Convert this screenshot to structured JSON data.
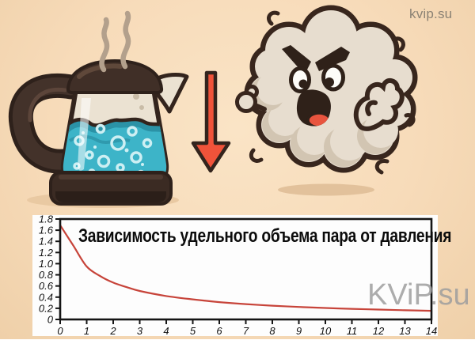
{
  "site": {
    "header_watermark": "kvip.su",
    "chart_watermark": "KViP.su"
  },
  "illustration": {
    "kettle": "glass kettle with boiling blue water and steam",
    "cloud": "angry steam cloud shouting",
    "arrow": "red arrow pointing down",
    "colors": {
      "background": "#f7dbb9",
      "outline": "#33241d",
      "kettle_body": "#3f2f27",
      "glass": "#ebe2d2",
      "water": "#3db4c8",
      "water_dark": "#2b92a6",
      "bubble": "#cdeff3",
      "steam": "#b3a08c",
      "cloud_fill": "#e7ddcf",
      "cloud_shade": "#d2c5b2",
      "arrow_red": "#f0533a",
      "tongue_red": "#e8543e",
      "shadow_tan": "#e2c19b"
    }
  },
  "chart_data": {
    "type": "line",
    "title": "Зависимость удельного объема пара от давления",
    "series_name": "удельный объем пара",
    "x": [
      0,
      0.5,
      1,
      1.5,
      2,
      2.5,
      3,
      4,
      5,
      6,
      7,
      8,
      9,
      10,
      11,
      12,
      13,
      14
    ],
    "values": [
      1.69,
      1.32,
      0.95,
      0.78,
      0.66,
      0.58,
      0.51,
      0.42,
      0.36,
      0.31,
      0.275,
      0.247,
      0.224,
      0.205,
      0.19,
      0.177,
      0.165,
      0.155
    ],
    "xlabel": "",
    "ylabel": "",
    "xlim": [
      0,
      14
    ],
    "ylim": [
      0,
      1.8
    ],
    "xticks": [
      "0",
      "1",
      "2",
      "3",
      "4",
      "5",
      "6",
      "7",
      "8",
      "9",
      "10",
      "11",
      "12",
      "13",
      "14"
    ],
    "yticks": [
      "0",
      "0.2",
      "0.4",
      "0.6",
      "0.8",
      "1.0",
      "1.2",
      "1.4",
      "1.6",
      "1.8"
    ],
    "grid": false,
    "legend": false,
    "line_color": "#c7443a",
    "axis_color": "#151515",
    "background": "#fdfdfd"
  }
}
